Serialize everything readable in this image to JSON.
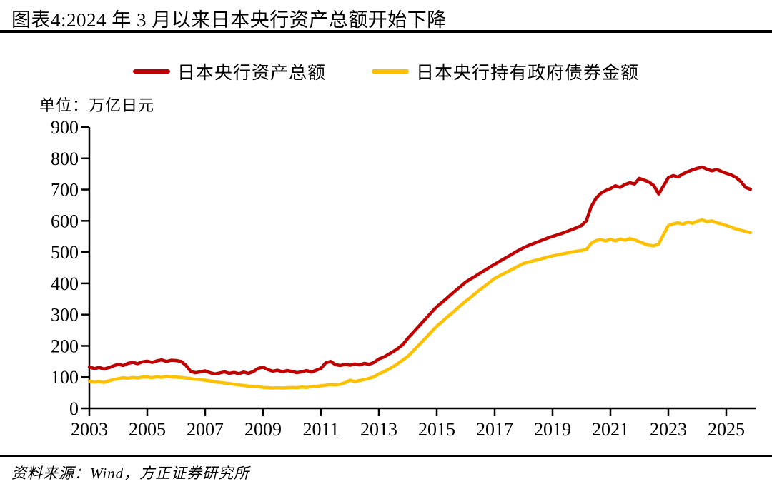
{
  "header": {
    "title": "图表4:2024 年 3 月以来日本央行资产总额开始下降"
  },
  "unit_label": "单位：万亿日元",
  "footer": {
    "source": "资料来源：Wind，方正证券研究所"
  },
  "chart_data": {
    "type": "line",
    "title": "2024 年 3 月以来日本央行资产总额开始下降",
    "ylabel": "万亿日元",
    "xlabel": "",
    "ylim": [
      0,
      900
    ],
    "xlim": [
      2003,
      2026
    ],
    "grid": false,
    "legend_position": "top-center",
    "y_ticks": [
      0,
      100,
      200,
      300,
      400,
      500,
      600,
      700,
      800,
      900
    ],
    "x_ticks": [
      2003,
      2005,
      2007,
      2009,
      2011,
      2013,
      2015,
      2017,
      2019,
      2021,
      2023,
      2025
    ],
    "x_start": 2003.0,
    "x_step": 0.166667,
    "series": [
      {
        "name": "日本央行资产总额",
        "color": "#C00000",
        "values": [
          133,
          127,
          131,
          126,
          130,
          136,
          141,
          137,
          144,
          147,
          143,
          149,
          151,
          147,
          152,
          155,
          150,
          154,
          153,
          150,
          138,
          118,
          114,
          117,
          120,
          114,
          110,
          113,
          117,
          112,
          115,
          111,
          116,
          112,
          118,
          128,
          132,
          124,
          119,
          122,
          117,
          121,
          118,
          114,
          117,
          121,
          116,
          122,
          128,
          146,
          150,
          140,
          137,
          141,
          138,
          142,
          139,
          144,
          141,
          147,
          158,
          164,
          173,
          182,
          192,
          205,
          224,
          241,
          258,
          275,
          292,
          309,
          325,
          338,
          351,
          365,
          378,
          391,
          404,
          414,
          423,
          433,
          442,
          452,
          461,
          470,
          479,
          488,
          497,
          506,
          514,
          521,
          527,
          533,
          539,
          545,
          550,
          555,
          560,
          566,
          572,
          578,
          585,
          600,
          645,
          672,
          688,
          697,
          703,
          712,
          707,
          716,
          722,
          718,
          736,
          730,
          724,
          712,
          686,
          712,
          738,
          745,
          740,
          750,
          757,
          763,
          768,
          772,
          765,
          760,
          764,
          758,
          752,
          747,
          739,
          726,
          707,
          701
        ]
      },
      {
        "name": "日本央行持有政府债券金额",
        "color": "#FFC000",
        "values": [
          87,
          84,
          86,
          83,
          88,
          92,
          95,
          98,
          96,
          99,
          97,
          100,
          100,
          98,
          101,
          99,
          102,
          100,
          100,
          99,
          97,
          95,
          93,
          92,
          90,
          88,
          85,
          83,
          81,
          79,
          77,
          75,
          73,
          71,
          70,
          69,
          67,
          66,
          65,
          66,
          65,
          66,
          67,
          66,
          68,
          67,
          69,
          70,
          72,
          74,
          76,
          75,
          77,
          82,
          90,
          86,
          89,
          92,
          96,
          101,
          110,
          117,
          125,
          134,
          144,
          155,
          166,
          182,
          198,
          214,
          230,
          247,
          263,
          276,
          290,
          303,
          316,
          330,
          343,
          355,
          368,
          380,
          392,
          404,
          416,
          424,
          432,
          440,
          448,
          456,
          464,
          468,
          472,
          476,
          480,
          484,
          488,
          491,
          494,
          497,
          500,
          503,
          505,
          508,
          528,
          537,
          540,
          536,
          541,
          536,
          542,
          538,
          543,
          539,
          533,
          527,
          522,
          520,
          526,
          556,
          585,
          590,
          594,
          589,
          596,
          592,
          599,
          603,
          597,
          600,
          594,
          590,
          585,
          580,
          574,
          570,
          566,
          562
        ]
      }
    ]
  }
}
